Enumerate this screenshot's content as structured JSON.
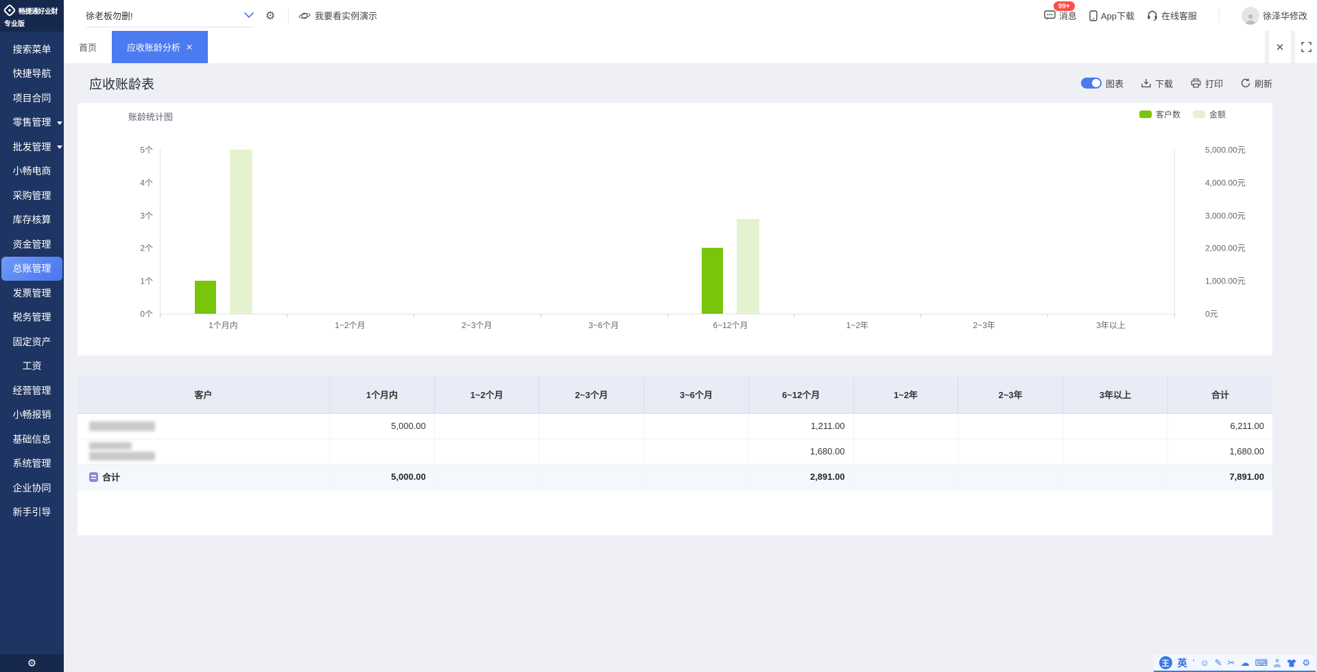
{
  "app": {
    "brand": "畅捷通好业财",
    "edition": "专业版"
  },
  "colors": {
    "accent": "#4a7af0",
    "sidebar_bg": "#1e3462",
    "bar_count_green": "#79c50c",
    "bar_amount_green": "#e5f2d0",
    "badge_red": "#f9504c"
  },
  "topbar": {
    "workspace": "徐老板勿删!",
    "demo_link": "我要看实例演示",
    "messages_label": "消息",
    "messages_badge": "99+",
    "app_download_label": "App下载",
    "support_label": "在线客服",
    "user_name": "徐泽华修改"
  },
  "tabs": [
    {
      "label": "首页",
      "active": false,
      "closable": false
    },
    {
      "label": "应收账龄分析",
      "active": true,
      "closable": true
    }
  ],
  "sidebar": {
    "items": [
      {
        "label": "搜索菜单"
      },
      {
        "label": "快捷导航"
      },
      {
        "label": "项目合同"
      },
      {
        "label": "零售管理",
        "expandable": true
      },
      {
        "label": "批发管理",
        "expandable": true
      },
      {
        "label": "小畅电商"
      },
      {
        "label": "采购管理"
      },
      {
        "label": "库存核算"
      },
      {
        "label": "资金管理"
      },
      {
        "label": "总账管理",
        "active": true
      },
      {
        "label": "发票管理"
      },
      {
        "label": "税务管理"
      },
      {
        "label": "固定资产"
      },
      {
        "label": "工资"
      },
      {
        "label": "经营管理"
      },
      {
        "label": "小畅报销"
      },
      {
        "label": "基础信息"
      },
      {
        "label": "系统管理"
      },
      {
        "label": "企业协同"
      },
      {
        "label": "新手引导"
      }
    ]
  },
  "page": {
    "title": "应收账龄表",
    "chart_toggle_label": "图表",
    "chart_toggle_on": true,
    "download_label": "下载",
    "print_label": "打印",
    "refresh_label": "刷新"
  },
  "chart_data": {
    "type": "bar",
    "title": "账龄统计图",
    "categories": [
      "1个月内",
      "1~2个月",
      "2~3个月",
      "3~6个月",
      "6~12个月",
      "1~2年",
      "2~3年",
      "3年以上"
    ],
    "series": [
      {
        "name": "客户数",
        "axis": "left",
        "color": "#79c50c",
        "values": [
          1,
          0,
          0,
          0,
          2,
          0,
          0,
          0
        ]
      },
      {
        "name": "金额",
        "axis": "right",
        "color": "#e5f2d0",
        "values": [
          5000,
          0,
          0,
          0,
          2891,
          0,
          0,
          0
        ]
      }
    ],
    "left_axis": {
      "max": 5,
      "ticks": [
        "0个",
        "1个",
        "2个",
        "3个",
        "4个",
        "5个"
      ]
    },
    "right_axis": {
      "max": 5000,
      "ticks": [
        "0元",
        "1,000.00元",
        "2,000.00元",
        "3,000.00元",
        "4,000.00元",
        "5,000.00元"
      ]
    },
    "grid": false,
    "legend_position": "top-right"
  },
  "table": {
    "columns": [
      "客户",
      "1个月内",
      "1~2个月",
      "2~3个月",
      "3~6个月",
      "6~12个月",
      "1~2年",
      "2~3年",
      "3年以上",
      "合计"
    ],
    "rows": [
      {
        "customer_masked": true,
        "values": [
          "5,000.00",
          "",
          "",
          "",
          "1,211.00",
          "",
          "",
          "",
          "6,211.00"
        ]
      },
      {
        "customer_masked": true,
        "values": [
          "",
          "",
          "",
          "",
          "1,680.00",
          "",
          "",
          "",
          "1,680.00"
        ]
      }
    ],
    "total_row": {
      "label": "合计",
      "values": [
        "5,000.00",
        "",
        "",
        "",
        "2,891.00",
        "",
        "",
        "",
        "7,891.00"
      ]
    }
  },
  "ime": {
    "primary": "王",
    "lang": "英",
    "icons": [
      "comma",
      "emoji",
      "pencil",
      "scissors",
      "cloud",
      "keyboard",
      "person",
      "shirt",
      "gear"
    ]
  }
}
